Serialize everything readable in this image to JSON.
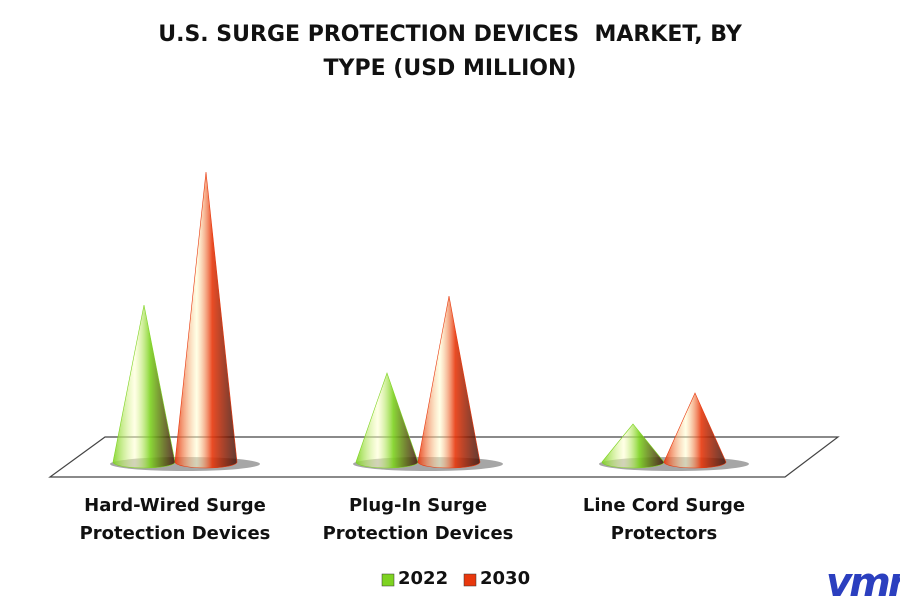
{
  "chart_data": {
    "type": "cone",
    "title": "U.S. SURGE PROTECTION DEVICES  MARKET, BY TYPE (USD MILLION)",
    "categories": [
      "Hard-Wired Surge Protection Devices",
      "Plug-In Surge Protection Devices",
      "Line Cord Surge Protectors"
    ],
    "series": [
      {
        "name": "2022",
        "color": "#7ed321",
        "values": [
          157,
          89,
          38
        ]
      },
      {
        "name": "2030",
        "color": "#e8380d",
        "values": [
          290,
          166,
          69
        ]
      }
    ],
    "legend": "bottom"
  },
  "logo": "vmr"
}
